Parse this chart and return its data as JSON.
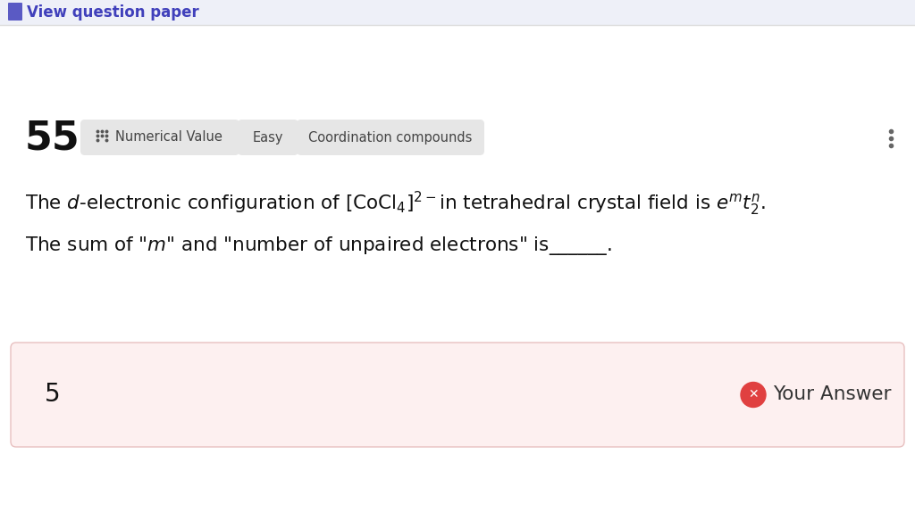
{
  "bg_color": "#eef0f8",
  "content_bg": "#ffffff",
  "answer_bg": "#fdf0f0",
  "question_number": "55",
  "tag1_bg": "#e6e6e6",
  "tag2_bg": "#e6e6e6",
  "tag3_bg": "#e6e6e6",
  "tag_text_color": "#444444",
  "answer_value": "5",
  "answer_label": "Your Answer",
  "answer_icon_color": "#e04040",
  "top_bar_text": "View question paper",
  "top_bar_color": "#4040bb",
  "top_bar_bg": "#eef0f8",
  "dots_color": "#666666",
  "text_color": "#111111",
  "question_number_color": "#111111",
  "separator_color": "#dddddd"
}
